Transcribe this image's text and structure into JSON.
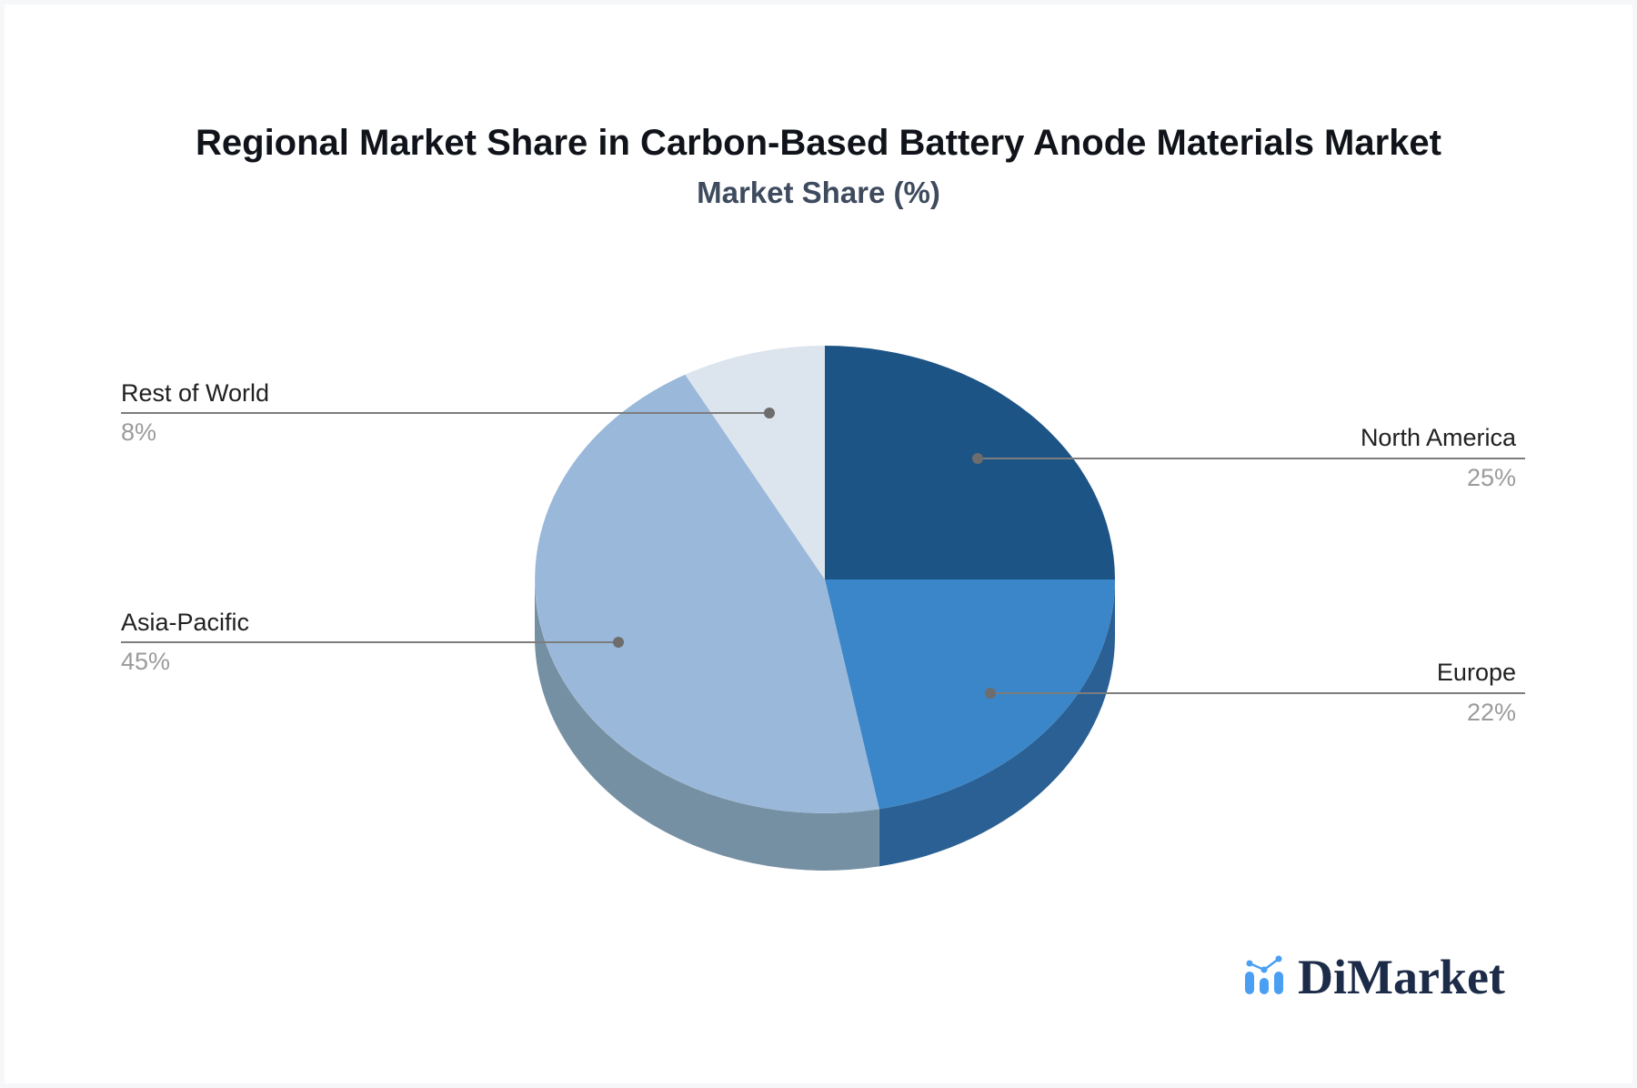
{
  "header": {
    "title": "Regional Market Share in Carbon-Based Battery Anode Materials Market",
    "subtitle": "Market Share (%)"
  },
  "chart_data": {
    "type": "pie",
    "effect": "3d",
    "title": "Regional Market Share in Carbon-Based Battery Anode Materials Market",
    "subtitle": "Market Share (%)",
    "unit": "%",
    "start_angle_deg": 0,
    "direction": "clockwise",
    "legend_position": "callout-labels",
    "slices": [
      {
        "label": "North America",
        "value": 25,
        "display": "25%",
        "color": "#1d5486",
        "depth_color": "#17436b"
      },
      {
        "label": "Europe",
        "value": 22,
        "display": "22%",
        "color": "#3b86c8",
        "depth_color": "#2a6093"
      },
      {
        "label": "Asia-Pacific",
        "value": 45,
        "display": "45%",
        "color": "#9ab8da",
        "depth_color": "#7690a3"
      },
      {
        "label": "Rest of World",
        "value": 8,
        "display": "8%",
        "color": "#dce4ee",
        "depth_color": "#b9c4d2"
      }
    ]
  },
  "branding": {
    "logo_text": "DiMarket",
    "logo_icon": "bar-chart-trend-icon",
    "logo_text_color": "#1c2b48",
    "logo_icon_color": "#4a9ff2"
  }
}
